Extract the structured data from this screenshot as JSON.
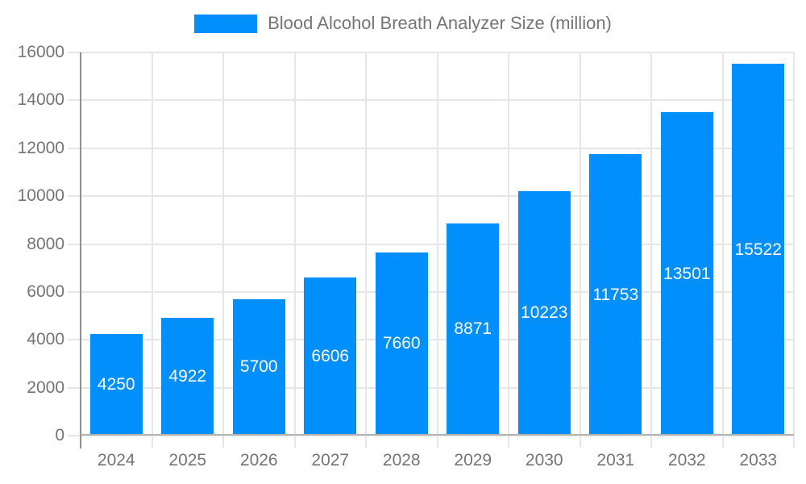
{
  "legend": {
    "label": "Blood Alcohol Breath Analyzer Size (million)"
  },
  "chart_data": {
    "type": "bar",
    "title": "Blood Alcohol Breath Analyzer Size (million)",
    "series_name": "Blood Alcohol Breath Analyzer Size (million)",
    "categories": [
      "2024",
      "2025",
      "2026",
      "2027",
      "2028",
      "2029",
      "2030",
      "2031",
      "2032",
      "2033"
    ],
    "values": [
      4250,
      4922,
      5700,
      6606,
      7660,
      8871,
      10223,
      11753,
      13501,
      15522
    ],
    "value_labels": [
      "4250",
      "4922",
      "5700",
      "6606",
      "7660",
      "8871",
      "10223",
      "11753",
      "13501",
      "15522"
    ],
    "xlabel": "",
    "ylabel": "",
    "ylim": [
      0,
      16000
    ],
    "ytick_step": 2000,
    "yticks": [
      0,
      2000,
      4000,
      6000,
      8000,
      10000,
      12000,
      14000,
      16000
    ],
    "grid": true,
    "legend_position": "top",
    "bar_color": "#008ffb",
    "value_label_color": "#ffffff",
    "axis_text_color": "#757575",
    "gridline_color": "#e6e6e6",
    "y_axis_line_color": "#8f8f8f",
    "x_axis_line_color": "#b3b3b3"
  }
}
